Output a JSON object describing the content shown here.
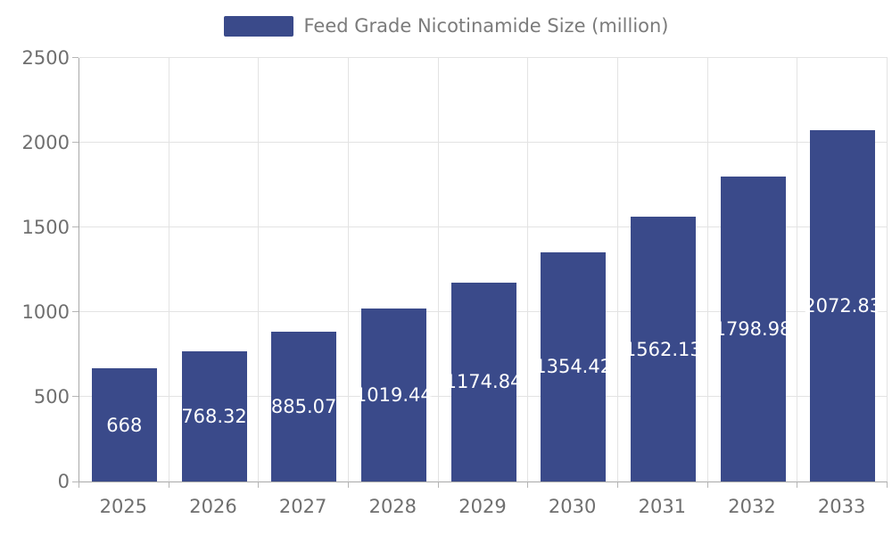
{
  "chart_data": {
    "type": "bar",
    "title": "Feed Grade Nicotinamide Size (million)",
    "legend_position": "top",
    "grid": true,
    "categories": [
      "2025",
      "2026",
      "2027",
      "2028",
      "2029",
      "2030",
      "2031",
      "2032",
      "2033"
    ],
    "values": [
      668,
      768.32,
      885.07,
      1019.44,
      1174.84,
      1354.42,
      1562.13,
      1798.98,
      2072.83
    ],
    "value_labels": [
      "668",
      "768.32",
      "885.07",
      "1019.44",
      "1174.84",
      "1354.42",
      "1562.13",
      "1798.98",
      "2072.83"
    ],
    "xlabel": "",
    "ylabel": "",
    "ylim": [
      0,
      2500
    ],
    "yticks": [
      0,
      500,
      1000,
      1500,
      2000,
      2500
    ],
    "ytick_labels": [
      "0",
      "500",
      "1000",
      "1500",
      "2000",
      "2500"
    ],
    "colors": {
      "bar": "#3A4A8A",
      "bar_value_text": "#ffffff",
      "axis_line": "#a8a8a8",
      "tick_mark": "#b5b5b5",
      "gridline": "#e3e3e3",
      "tick_text": "#6f6f6f",
      "legend_text": "#7b7b7b"
    }
  }
}
